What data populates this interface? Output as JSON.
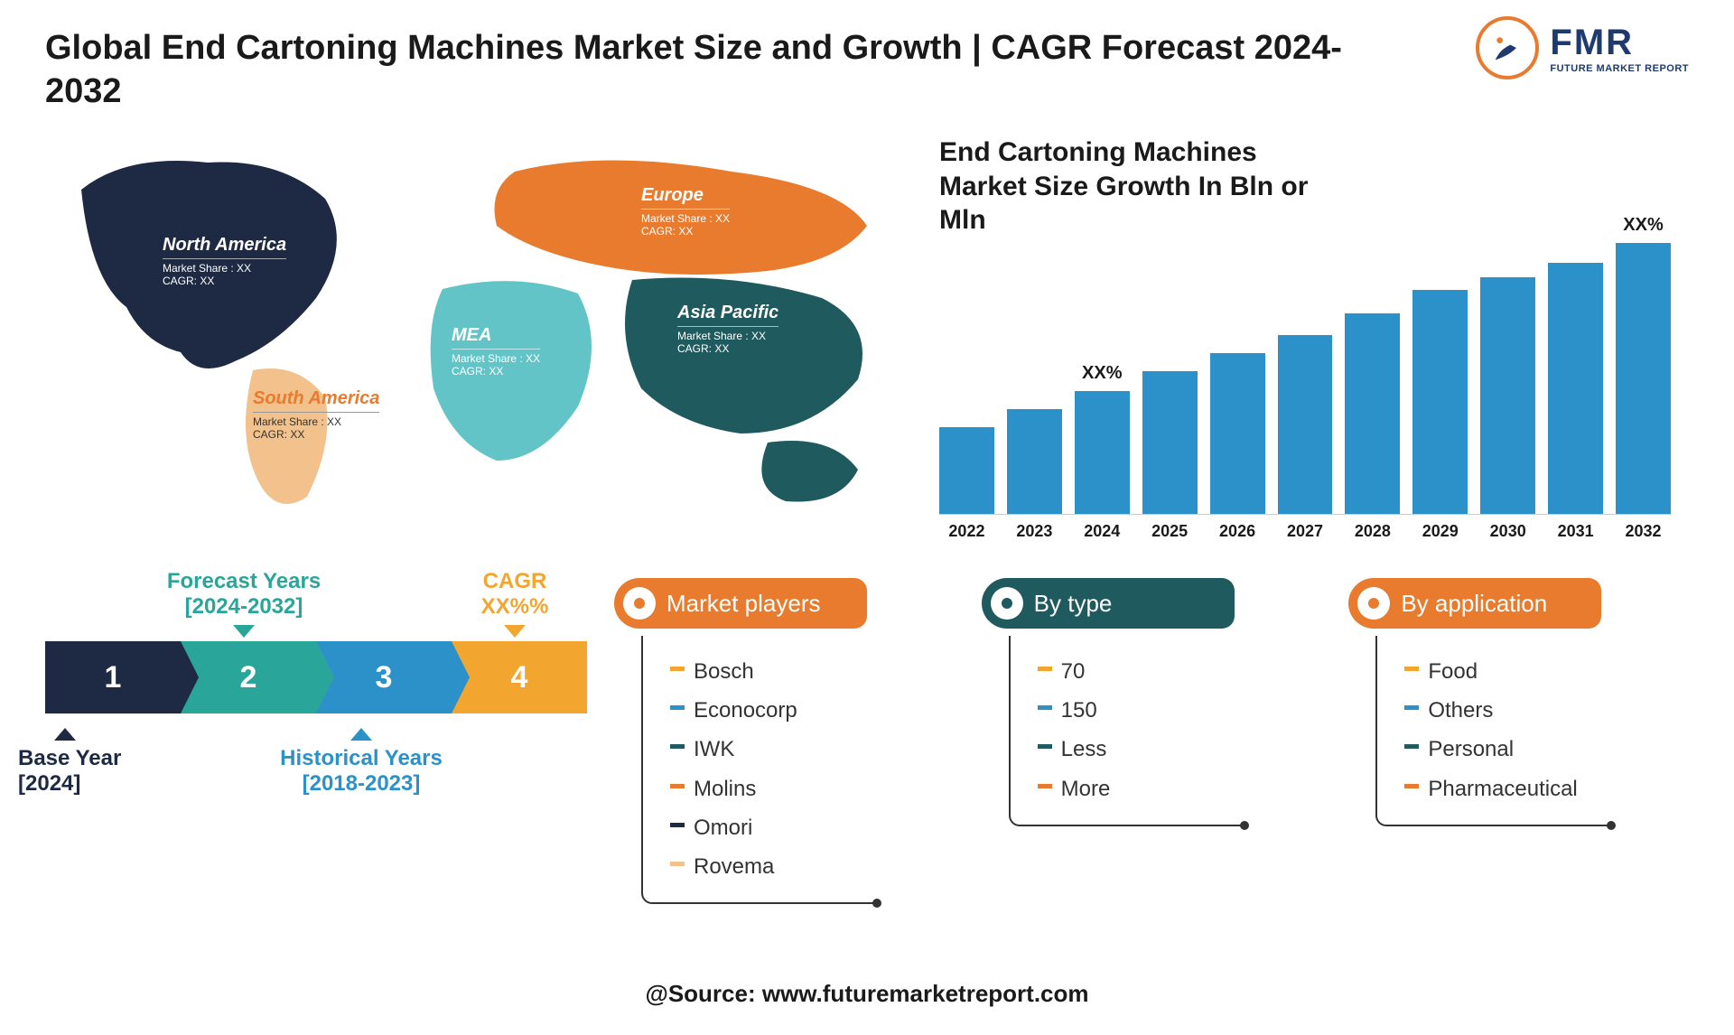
{
  "title": "Global End Cartoning Machines Market Size and Growth | CAGR Forecast 2024-2032",
  "logo": {
    "fmr": "FMR",
    "sub": "FUTURE MARKET REPORT"
  },
  "map": {
    "regions": [
      {
        "key": "north_america",
        "name": "North America",
        "share": "Market Share : XX",
        "cagr": "CAGR: XX",
        "color": "#1e2a44"
      },
      {
        "key": "south_america",
        "name": "South America",
        "share": "Market Share : XX",
        "cagr": "CAGR: XX",
        "color": "#f2c18c"
      },
      {
        "key": "europe",
        "name": "Europe",
        "share": "Market Share : XX",
        "cagr": "CAGR: XX",
        "color": "#e97b2f"
      },
      {
        "key": "mea",
        "name": "MEA",
        "share": "Market Share : XX",
        "cagr": "CAGR: XX",
        "color": "#63c4c8"
      },
      {
        "key": "asia_pacific",
        "name": "Asia Pacific",
        "share": "Market Share : XX",
        "cagr": "CAGR: XX",
        "color": "#1f5a5e"
      }
    ]
  },
  "barChart": {
    "title": "End Cartoning Machines Market Size Growth In Bln or Mln",
    "type": "bar",
    "bar_color": "#2b91c8",
    "background_color": "#ffffff",
    "years": [
      "2022",
      "2023",
      "2024",
      "2025",
      "2026",
      "2027",
      "2028",
      "2029",
      "2030",
      "2031",
      "2032"
    ],
    "heights": [
      96,
      116,
      136,
      158,
      178,
      198,
      222,
      248,
      262,
      278,
      300
    ],
    "annotations": [
      {
        "year": "2024",
        "text": "XX%"
      },
      {
        "year": "2032",
        "text": "XX%"
      }
    ],
    "label_fontsize": 18,
    "title_fontsize": 30
  },
  "timeline": {
    "segments": [
      {
        "num": "1",
        "color": "#1e2a44"
      },
      {
        "num": "2",
        "color": "#2aa59a"
      },
      {
        "num": "3",
        "color": "#2b91c8"
      },
      {
        "num": "4",
        "color": "#f2a62f"
      }
    ],
    "labels": {
      "base": {
        "title": "Base Year",
        "range": "[2024]",
        "color": "#1e2a44"
      },
      "forecast": {
        "title": "Forecast Years",
        "range": "[2024-2032]",
        "color": "#2aa59a"
      },
      "hist": {
        "title": "Historical Years",
        "range": "[2018-2023]",
        "color": "#2b91c8"
      },
      "cagr": {
        "title": "CAGR",
        "range": "XX%%",
        "color": "#f2a62f"
      }
    }
  },
  "categories": [
    {
      "title": "Market players",
      "pill_color": "#e97b2f",
      "items": [
        "Bosch",
        "Econocorp",
        "IWK",
        "Molins",
        "Omori",
        "Rovema"
      ],
      "item_colors": [
        "#f2a62f",
        "#2b91c8",
        "#1f5a5e",
        "#e97b2f",
        "#1e2a44",
        "#f2c18c"
      ]
    },
    {
      "title": "By type",
      "pill_color": "#1f5a5e",
      "items": [
        "70",
        "150",
        "Less",
        "More"
      ],
      "item_colors": [
        "#f2a62f",
        "#2b91c8",
        "#1f5a5e",
        "#e97b2f"
      ]
    },
    {
      "title": "By application",
      "pill_color": "#e97b2f",
      "items": [
        "Food",
        "Others",
        "Personal",
        "Pharmaceutical"
      ],
      "item_colors": [
        "#f2a62f",
        "#2b91c8",
        "#1f5a5e",
        "#e97b2f"
      ]
    }
  ],
  "source": "@Source: www.futuremarketreport.com"
}
